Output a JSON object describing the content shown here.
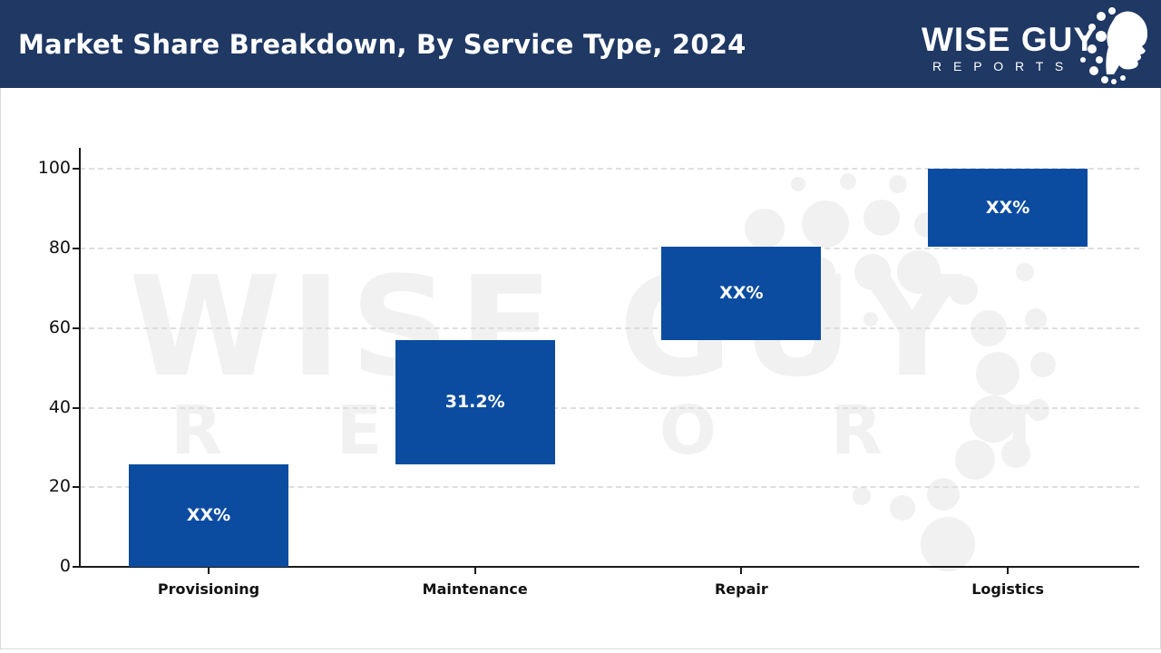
{
  "header": {
    "title": "Market Share Breakdown, By Service Type, 2024"
  },
  "logo": {
    "brand_top": "WISE GUY",
    "brand_bottom": "R E P O R T S"
  },
  "watermark": {
    "line1": "WISE GUY",
    "line2": "R E P O R T S"
  },
  "chart_data": {
    "type": "bar",
    "variant": "waterfall",
    "title": "Market Share Breakdown, By Service Type, 2024",
    "categories": [
      "Provisioning",
      "Maintenance",
      "Repair",
      "Logistics"
    ],
    "segments": [
      {
        "category": "Provisioning",
        "start": 0,
        "end": 25.8,
        "value_label": "XX%"
      },
      {
        "category": "Maintenance",
        "start": 25.8,
        "end": 57.0,
        "value_label": "31.2%"
      },
      {
        "category": "Repair",
        "start": 57.0,
        "end": 80.6,
        "value_label": "XX%"
      },
      {
        "category": "Logistics",
        "start": 80.6,
        "end": 100,
        "value_label": "XX%"
      }
    ],
    "xlabel": "",
    "ylabel": "",
    "ylim": [
      0,
      100
    ],
    "yticks": [
      0,
      20,
      40,
      60,
      80,
      100
    ],
    "grid": "horizontal-dashed",
    "legend": "none",
    "colors": {
      "bar": "#0b4ca0",
      "bar_label": "#ffffff",
      "header_bg": "#1f3864",
      "gridline": "#dedede",
      "axis": "#1a1a1a",
      "watermark": "#f1f1f1"
    }
  }
}
